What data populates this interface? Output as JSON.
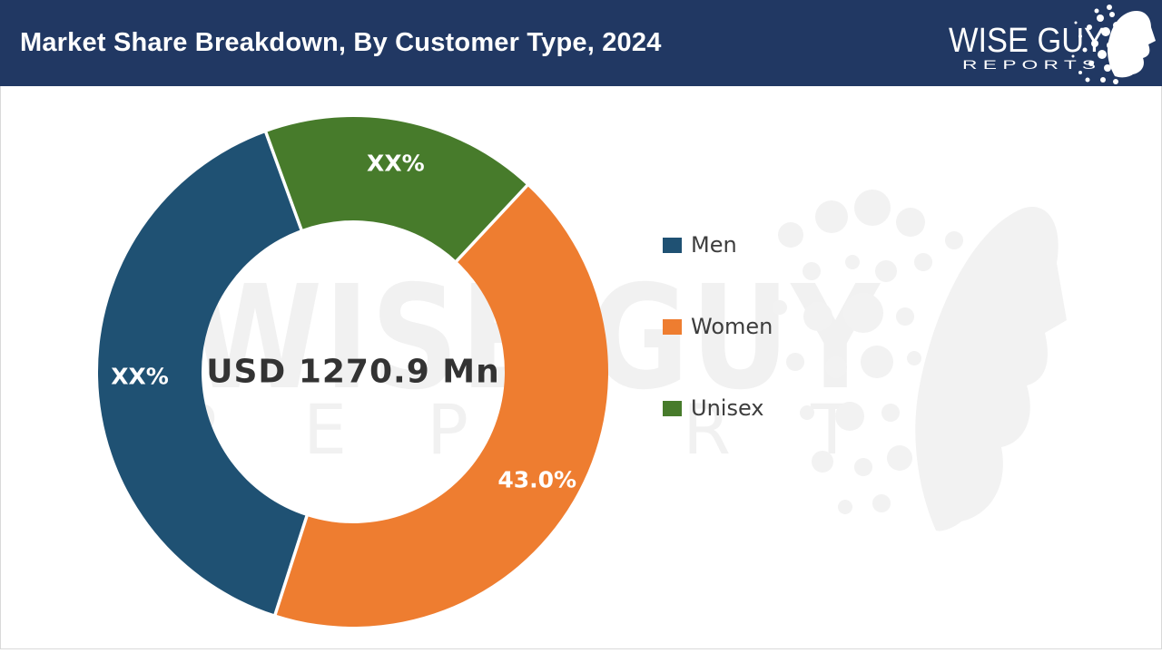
{
  "header": {
    "title": "Market Share Breakdown, By Customer Type, 2024",
    "logo": {
      "line1": "WISE GUY",
      "line2": "R E P O R T S"
    }
  },
  "watermark": {
    "line1": "WISE GUY",
    "line2": "R E P O R T S"
  },
  "chart_data": {
    "type": "donut",
    "title": "Market Share Breakdown, By Customer Type, 2024",
    "center_label": "USD 1270.9 Mn",
    "unit": "percent share",
    "legend_position": "right",
    "slices": [
      {
        "name": "Men",
        "value": 39.5,
        "label": "XX%",
        "color": "#1F5173"
      },
      {
        "name": "Women",
        "value": 43.0,
        "label": "43.0%",
        "color": "#EE7D30"
      },
      {
        "name": "Unisex",
        "value": 17.5,
        "label": "XX%",
        "color": "#477B2B"
      }
    ]
  },
  "colors": {
    "header_bg": "#213863",
    "center_text": "#333333",
    "legend_text": "#3D3D3D",
    "watermark": "#F1F1F1"
  }
}
